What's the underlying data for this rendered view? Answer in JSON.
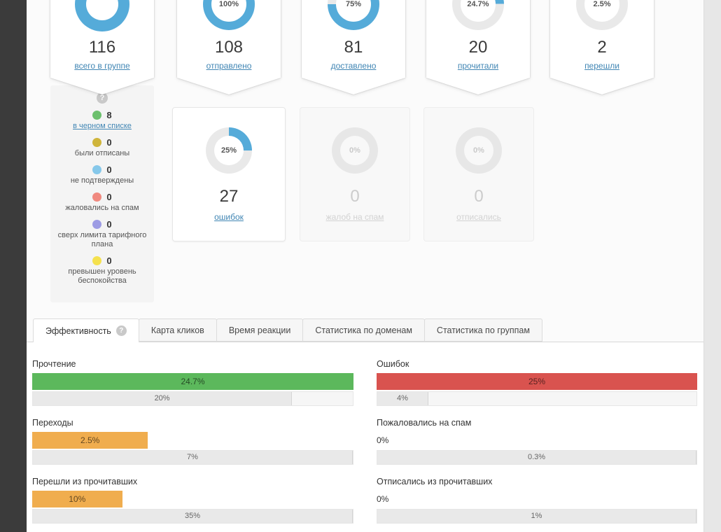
{
  "colors": {
    "accent_blue": "#55abd9",
    "bar_green": "#5cb85c",
    "bar_orange": "#f0ad4e",
    "bar_red": "#d9534f",
    "link_blue": "#4186b4"
  },
  "top_cards": [
    {
      "value": "116",
      "label": "всего в группе",
      "percent_label": "",
      "percent": 100
    },
    {
      "value": "108",
      "label": "отправлено",
      "percent_label": "100%",
      "percent": 100
    },
    {
      "value": "81",
      "label": "доставлено",
      "percent_label": "75%",
      "percent": 75
    },
    {
      "value": "20",
      "label": "прочитали",
      "percent_label": "24.7%",
      "percent": 24.7
    },
    {
      "value": "2",
      "label": "перешли",
      "percent_label": "2.5%",
      "percent": 2.5
    }
  ],
  "legend": {
    "help": "?",
    "items": [
      {
        "value": "8",
        "label": "в черном списке",
        "color": "#6cc06d"
      },
      {
        "value": "0",
        "label": "были отписаны",
        "color": "#cfb53b"
      },
      {
        "value": "0",
        "label": "не подтверждены",
        "color": "#86c8ea"
      },
      {
        "value": "0",
        "label": "жаловались на спам",
        "color": "#f0897f"
      },
      {
        "value": "0",
        "label": "сверх лимита тарифного плана",
        "color": "#9d9ce4"
      },
      {
        "value": "0",
        "label": "превышен уровень беспокойства",
        "color": "#f5e14e"
      }
    ]
  },
  "mid_cards": [
    {
      "percent_label": "25%",
      "percent": 25,
      "value": "27",
      "label": "ошибок"
    },
    {
      "percent_label": "0%",
      "percent": 0,
      "value": "0",
      "label": "жалоб на спам"
    },
    {
      "percent_label": "0%",
      "percent": 0,
      "value": "0",
      "label": "отписались"
    }
  ],
  "tabs": [
    {
      "label": "Эффективность",
      "help": "?"
    },
    {
      "label": "Карта кликов"
    },
    {
      "label": "Время реакции"
    },
    {
      "label": "Статистика по доменам"
    },
    {
      "label": "Статистика по группам"
    }
  ],
  "effectiveness": {
    "left": [
      {
        "label": "Прочтение",
        "value_label": "24.7%",
        "value_width": 100,
        "avg_label": "20%",
        "avg_width": 81
      },
      {
        "label": "Переходы",
        "value_label": "2.5%",
        "value_width": 36,
        "avg_label": "7%",
        "avg_width": 100
      },
      {
        "label": "Перешли из прочитавших",
        "value_label": "10%",
        "value_width": 28,
        "avg_label": "35%",
        "avg_width": 100
      }
    ],
    "right": [
      {
        "label": "Ошибок",
        "value_label": "25%",
        "value_width": 100,
        "avg_label": "4%",
        "avg_width": 16
      },
      {
        "label": "Пожаловались на спам",
        "value_label": "0%",
        "value_width": 0,
        "avg_label": "0.3%",
        "avg_width": 100
      },
      {
        "label": "Отписались из прочитавших",
        "value_label": "0%",
        "value_width": 0,
        "avg_label": "1%",
        "avg_width": 100
      }
    ]
  }
}
